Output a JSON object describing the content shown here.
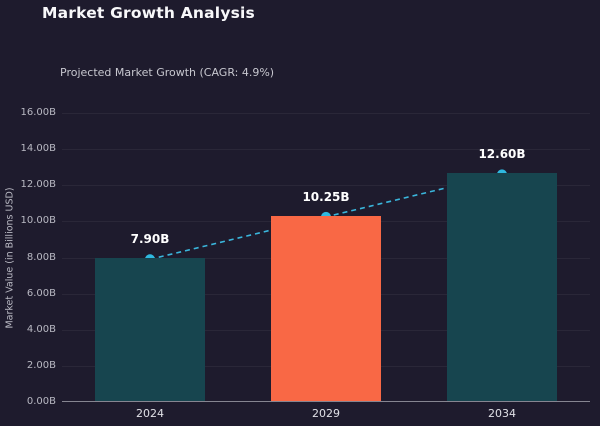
{
  "title": "Market Growth Analysis",
  "subtitle": "Projected Market Growth (CAGR: 4.9%)",
  "chart_data": {
    "type": "bar",
    "title": "Market Growth Analysis",
    "subtitle": "Projected Market Growth (CAGR: 4.9%)",
    "categories": [
      "2024",
      "2029",
      "2034"
    ],
    "values": [
      7.9,
      10.25,
      12.6
    ],
    "value_labels": [
      "7.90B",
      "10.25B",
      "12.60B"
    ],
    "bar_colors": [
      "#17454f",
      "#f96845",
      "#17454f"
    ],
    "ylabel": "Market Value (in Billions USD)",
    "xlabel": "",
    "ylim": [
      0,
      16
    ],
    "ytick_step": 2,
    "ytick_labels": [
      "0.00B",
      "2.00B",
      "4.00B",
      "6.00B",
      "8.00B",
      "10.00B",
      "12.00B",
      "14.00B",
      "16.00B"
    ],
    "trend_line_color": "#3ab6dc",
    "marker_color": "#2fb9e0",
    "grid": "on",
    "legend": "none",
    "background_color": "#1e1b2d"
  }
}
